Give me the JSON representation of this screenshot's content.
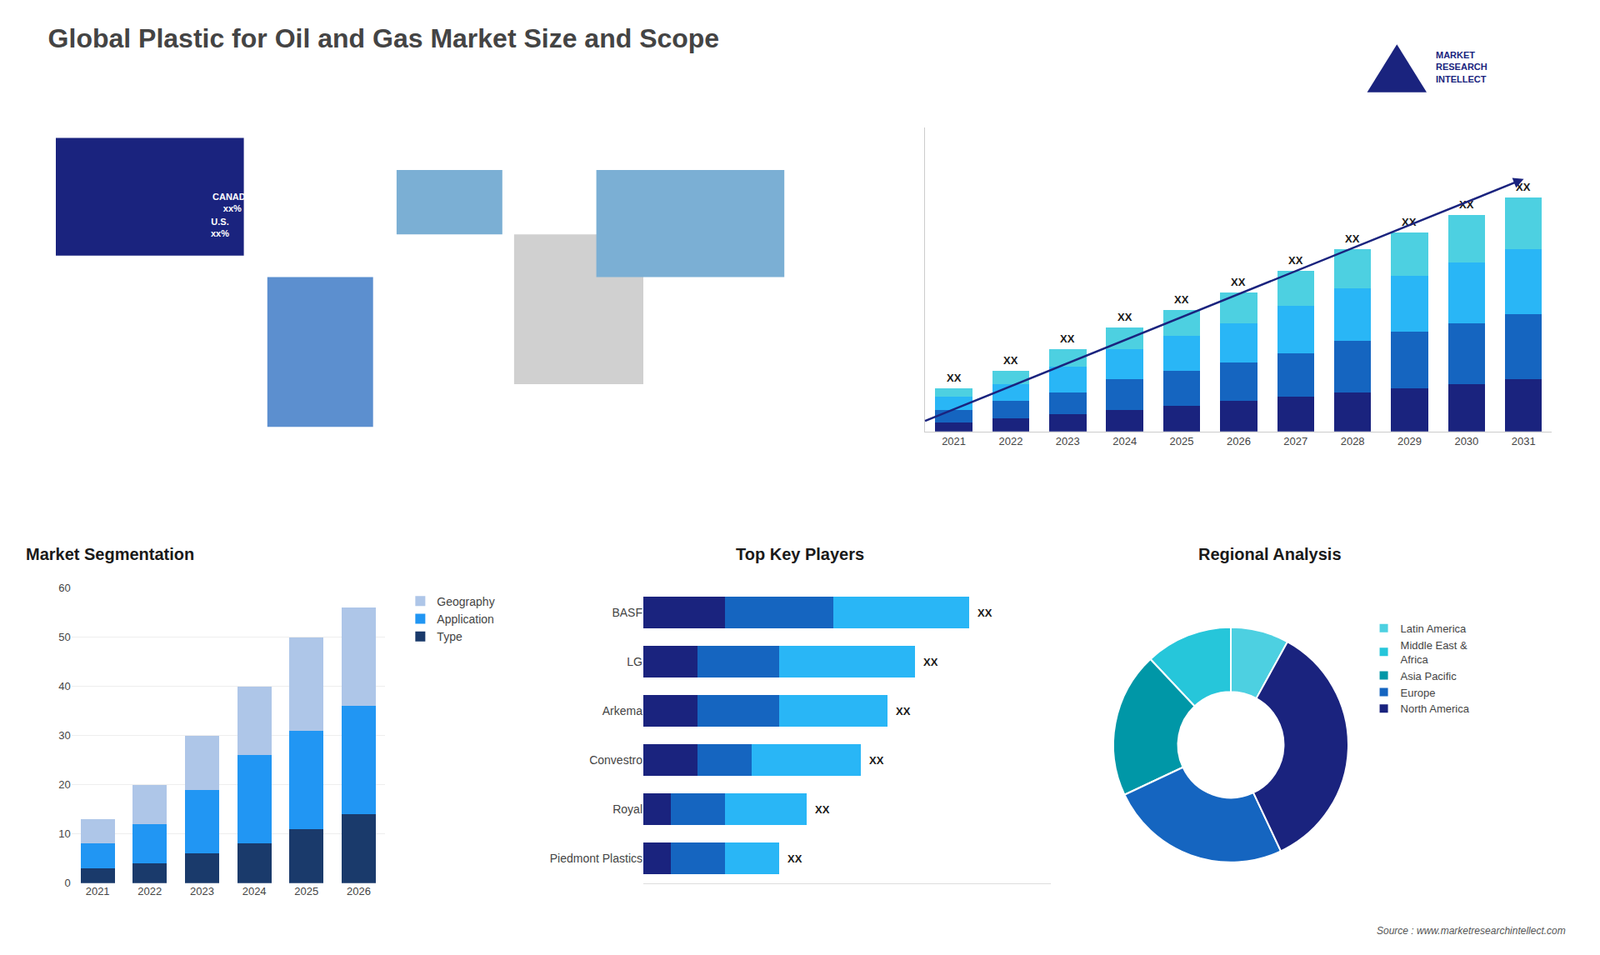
{
  "chart_data": [
    {
      "type": "map",
      "title": "Global Plastic for Oil and Gas Market Size and Scope",
      "colors": [
        "#1a237e",
        "#5c8fcf",
        "#7bafd4",
        "#d0d0d0",
        "#7bafd4"
      ],
      "annotations": [
        {
          "text": "CANADA\nxx%"
        },
        {
          "text": "U.S.\nxx%"
        },
        {
          "text": "MARKET\nRESEARCH\nINTELLECT"
        },
        {
          "text": "Source : www.marketresearchintellect.com"
        }
      ]
    },
    {
      "type": "bar",
      "stacked": true,
      "categories": [
        "2021",
        "2022",
        "2023",
        "2024",
        "2025",
        "2026",
        "2027",
        "2028",
        "2029",
        "2030",
        "2031"
      ],
      "series": [
        {
          "color": "#1a237e",
          "values": [
            2,
            3,
            4,
            5,
            6,
            7,
            8,
            9,
            10,
            11,
            12
          ]
        },
        {
          "color": "#1565c0",
          "values": [
            3,
            4,
            5,
            7,
            8,
            9,
            10,
            12,
            13,
            14,
            15
          ]
        },
        {
          "color": "#29b6f6",
          "values": [
            3,
            4,
            6,
            7,
            8,
            9,
            11,
            12,
            13,
            14,
            15
          ]
        },
        {
          "color": "#4dd0e1",
          "values": [
            2,
            3,
            4,
            5,
            6,
            7,
            8,
            9,
            10,
            11,
            12
          ]
        }
      ],
      "ylim": [
        0,
        70.2
      ],
      "yticks": [],
      "tick_labels": "x",
      "grid": false,
      "annotations": [
        {
          "x": "2021",
          "text": "XX"
        },
        {
          "x": "2022",
          "text": "XX"
        },
        {
          "x": "2023",
          "text": "XX"
        },
        {
          "x": "2024",
          "text": "XX"
        },
        {
          "x": "2025",
          "text": "XX"
        },
        {
          "x": "2026",
          "text": "XX"
        },
        {
          "x": "2027",
          "text": "XX"
        },
        {
          "x": "2028",
          "text": "XX"
        },
        {
          "x": "2029",
          "text": "XX"
        },
        {
          "x": "2030",
          "text": "XX"
        },
        {
          "x": "2031",
          "text": "XX"
        }
      ]
    },
    {
      "type": "bar",
      "title": "Market Segmentation",
      "stacked": true,
      "categories": [
        "2021",
        "2022",
        "2023",
        "2024",
        "2025",
        "2026"
      ],
      "series": [
        {
          "name": "Type",
          "color": "#1a3a6b",
          "values": [
            3,
            4,
            6,
            8,
            11,
            14
          ]
        },
        {
          "name": "Application",
          "color": "#2196f3",
          "values": [
            5,
            8,
            13,
            18,
            20,
            22
          ]
        },
        {
          "name": "Geography",
          "color": "#aec6e8",
          "values": [
            5,
            8,
            11,
            14,
            19,
            20
          ]
        }
      ],
      "ylim": [
        0,
        60
      ],
      "yticks": [
        0,
        10,
        20,
        30,
        40,
        50,
        60
      ],
      "grid": true,
      "legend": "upper right"
    },
    {
      "type": "bar",
      "title": "Top Key Players",
      "orientation": "horizontal",
      "stacked": true,
      "categories": [
        "BASF",
        "LG",
        "Arkema",
        "Convestro",
        "Royal",
        "Piedmont Plastics"
      ],
      "series": [
        {
          "color": "#1a237e",
          "values": [
            3,
            2,
            2,
            2,
            1,
            1
          ]
        },
        {
          "color": "#1565c0",
          "values": [
            4,
            3,
            3,
            2,
            2,
            2
          ]
        },
        {
          "color": "#29b6f6",
          "values": [
            5,
            5,
            4,
            4,
            3,
            2
          ]
        }
      ],
      "xlim": [
        0,
        15
      ],
      "xticks": [],
      "tick_labels": "y",
      "grid": false,
      "annotations": [
        {
          "y": "BASF",
          "text": "XX"
        },
        {
          "y": "LG",
          "text": "XX"
        },
        {
          "y": "Arkema",
          "text": "XX"
        },
        {
          "y": "Convestro",
          "text": "XX"
        },
        {
          "y": "Royal",
          "text": "XX"
        },
        {
          "y": "Piedmont Plastics",
          "text": "XX"
        }
      ]
    },
    {
      "type": "pie",
      "title": "Regional Analysis",
      "categories": [
        "Latin America",
        "Middle East &\nAfrica",
        "Asia Pacific",
        "Europe",
        "North America"
      ],
      "values": [
        8,
        12,
        20,
        25,
        35
      ],
      "colors": [
        "#4dd0e1",
        "#26c6da",
        "#0097a7",
        "#1565c0",
        "#1a237e"
      ],
      "legend": "right"
    }
  ]
}
